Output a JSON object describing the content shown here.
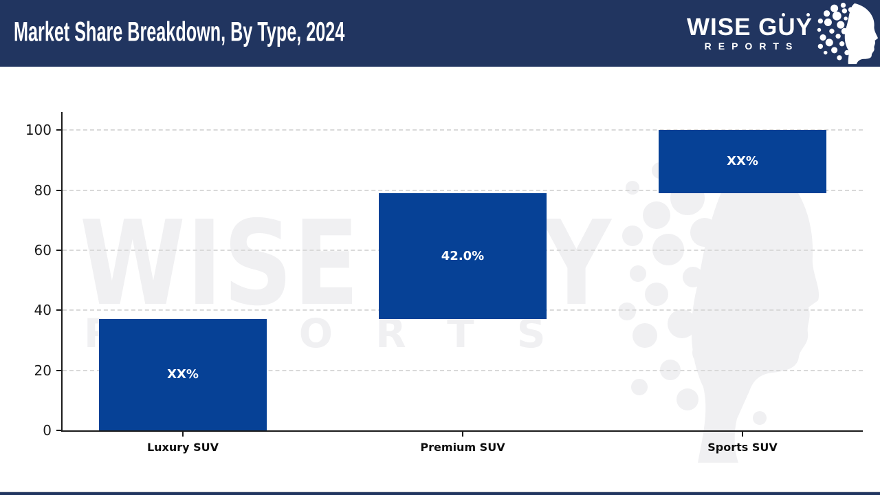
{
  "header": {
    "title": "Market Share Breakdown, By Type, 2024",
    "logo": {
      "wordmark": "WISE GUY",
      "subtext": "REPORTS"
    },
    "bg_color": "#213560"
  },
  "watermark": {
    "text_left": "WISE G",
    "text_tail": "Y",
    "text_bottom": "REPORTS"
  },
  "chart_data": {
    "type": "bar",
    "subtype": "waterfall",
    "title": "Market Share Breakdown, By Type, 2024",
    "unit": "%",
    "categories": [
      "Luxury SUV",
      "Premium SUV",
      "Sports SUV"
    ],
    "segments": [
      {
        "category": "Luxury SUV",
        "base": 0,
        "value": 37,
        "label": "XX%"
      },
      {
        "category": "Premium SUV",
        "base": 37,
        "value": 42,
        "label": "42.0%"
      },
      {
        "category": "Sports SUV",
        "base": 79,
        "value": 21,
        "label": "XX%"
      }
    ],
    "yticks": [
      0,
      20,
      40,
      60,
      80,
      100
    ],
    "ylim": [
      0,
      106
    ],
    "grid": {
      "axis": "y",
      "style": "dashed",
      "color": "#d9d9d9"
    },
    "legend": "none",
    "bar_color": "#064196",
    "bar_label_color": "#ffffff",
    "axis_color": "#1a1a1a"
  },
  "footer": {
    "bg_color": "#213560"
  }
}
